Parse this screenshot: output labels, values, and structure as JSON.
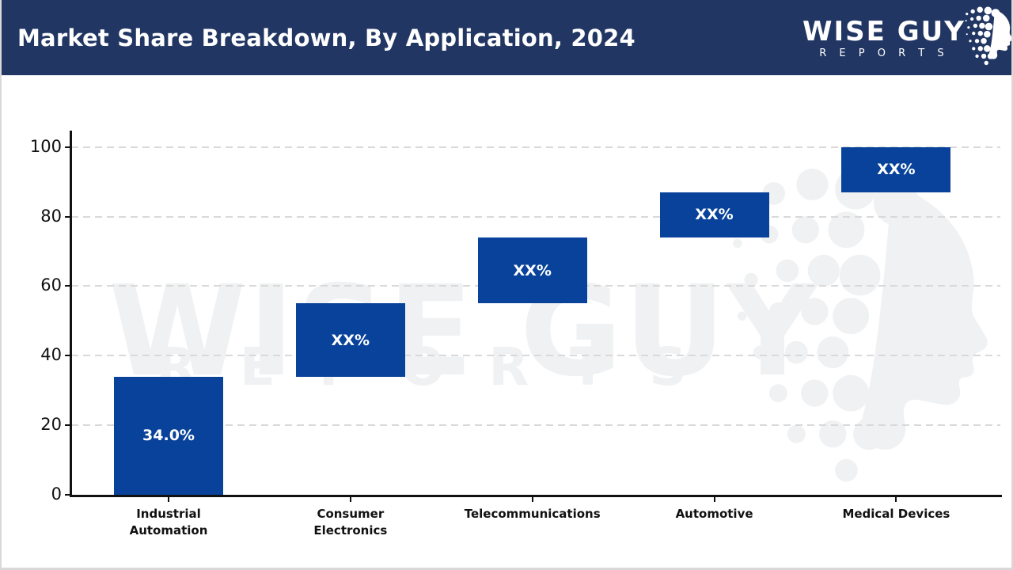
{
  "header": {
    "title": "Market Share Breakdown, By Application, 2024",
    "logo": {
      "line1": "WISE GUY",
      "line2": "R E P O R T S"
    }
  },
  "watermark": {
    "line1": "WISE GUY",
    "line2": "REPORTS"
  },
  "chart_data": {
    "type": "bar",
    "subtype": "floating-waterfall",
    "title": "Market Share Breakdown, By Application, 2024",
    "categories": [
      "Industrial\nAutomation",
      "Consumer\nElectronics",
      "Telecommunications",
      "Automotive",
      "Medical Devices"
    ],
    "series": [
      {
        "category": "Industrial Automation",
        "start": 0,
        "end": 34,
        "label": "34.0%"
      },
      {
        "category": "Consumer Electronics",
        "start": 34,
        "end": 55,
        "label": "XX%"
      },
      {
        "category": "Telecommunications",
        "start": 55,
        "end": 74,
        "label": "XX%"
      },
      {
        "category": "Automotive",
        "start": 74,
        "end": 87,
        "label": "XX%"
      },
      {
        "category": "Medical Devices",
        "start": 87,
        "end": 100,
        "label": "XX%"
      }
    ],
    "yticks": [
      0,
      20,
      40,
      60,
      80,
      100
    ],
    "ylim": [
      0,
      104
    ],
    "xlabel": "",
    "ylabel": "",
    "grid": "horizontal-dashed",
    "legend": "none",
    "bar_color": "#08429a",
    "bar_label_color": "#ffffff",
    "header_color": "#213663",
    "grid_color": "#d9d9d9",
    "watermark_color": "#f0f1f3"
  }
}
